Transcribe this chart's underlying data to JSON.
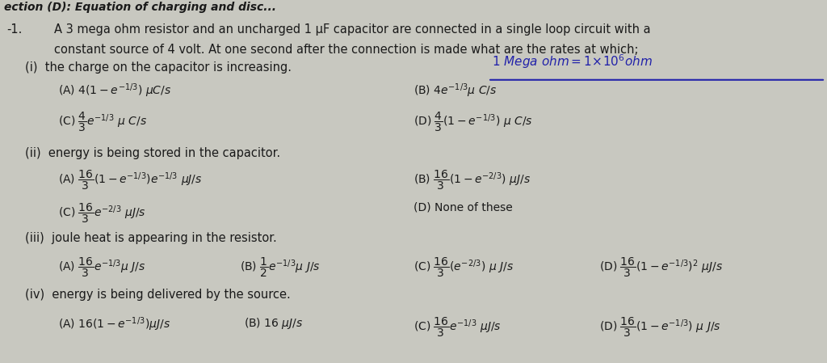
{
  "bg_color": "#c8c8c0",
  "text_color": "#1a1a1a",
  "handwritten_color": "#2222aa",
  "title_top": "ection (D): Equation of charging and disc...",
  "prob_num": "-1.",
  "prob_line1": "A 3 mega ohm resistor and an uncharged 1 μF capacitor are connected in a single loop circuit with a",
  "prob_line2": "constant source of 4 volt. At one second after the connection is made what are the rates at which;",
  "sub_i": "(i)  the charge on the capacitor is increasing.",
  "note": "1 Mega ohm = 1×10⁶ohm",
  "iA": "(A) $4(1 - e^{-1/3})\\ \\mu C/s$",
  "iB": "(B) $4e^{-1/3}\\mu\\ C/s$",
  "iC": "(C) $\\dfrac{4}{3}e^{-1/3}\\ \\mu\\ C/s$",
  "iD": "(D) $\\dfrac{4}{3}(1 - e^{-1/3})\\ \\mu\\ C/s$",
  "sub_ii": "(ii)  energy is being stored in the capacitor.",
  "iiA": "(A) $\\dfrac{16}{3}(1 - e^{-1/3})e^{-1/3}\\ \\mu J/s$",
  "iiB": "(B) $\\dfrac{16}{3}(1 - e^{-2/3})\\ \\mu J/s$",
  "iiC": "(C) $\\dfrac{16}{3}e^{-2/3}\\ \\mu J/s$",
  "iiD": "(D) None of these",
  "sub_iii": "(iii)  joule heat is appearing in the resistor.",
  "iiiA": "(A) $\\dfrac{16}{3}e^{-1/3}\\mu\\ J/s$",
  "iiiB": "(B) $\\dfrac{1}{2}e^{-1/3}\\mu\\ J/s$",
  "iiiC": "(C) $\\dfrac{16}{3}(e^{-2/3})\\ \\mu\\ J/s$",
  "iiiD": "(D) $\\dfrac{16}{3}(1 - e^{-1/3})^2\\ \\mu J/s$",
  "sub_iv": "(iv)  energy is being delivered by the source.",
  "ivA": "(A) $16(1 - e^{-1/3})\\mu J/s$",
  "ivB": "(B) $16\\ \\mu J/s$",
  "ivC": "(C) $\\dfrac{16}{3}e^{-1/3}\\ \\mu J/s$",
  "ivD": "(D) $\\dfrac{16}{3}(1 - e^{-1/3})\\ \\mu\\ J/s$",
  "fs_body": 10.5,
  "fs_opt": 10.0
}
